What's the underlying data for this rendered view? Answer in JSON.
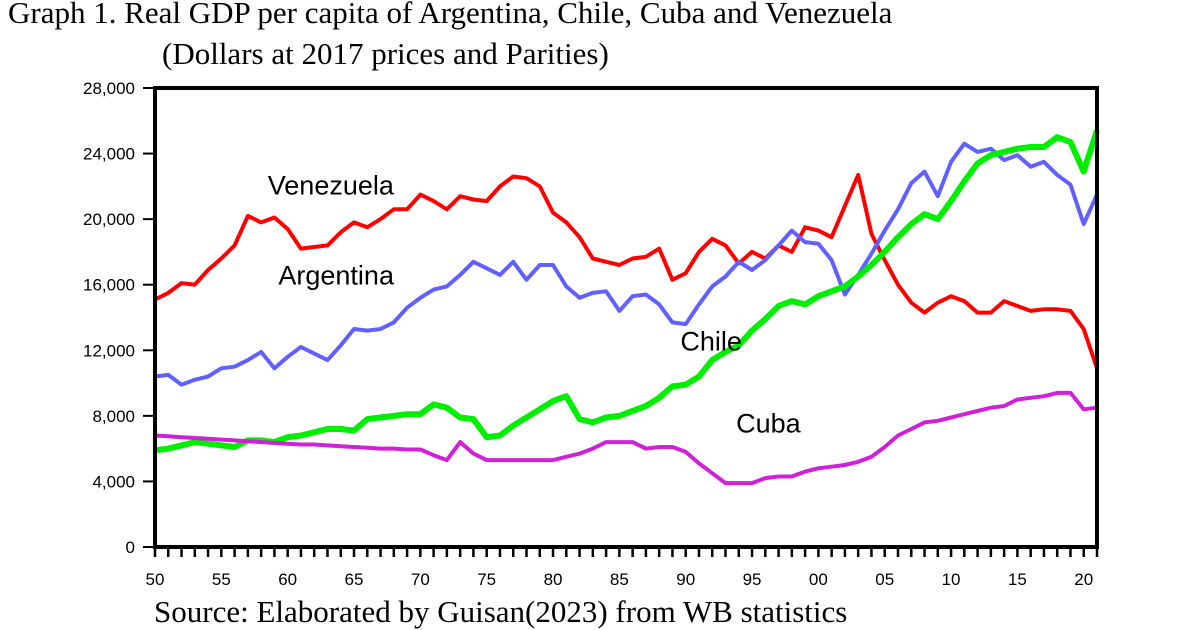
{
  "chart_data": {
    "type": "line",
    "title_line1": "Graph 1. Real GDP per capita of Argentina, Chile, Cuba and Venezuela",
    "title_line2": "(Dollars at 2017 prices and Parities)",
    "source": "Source: Elaborated by Guisan(2023) from WB statistics",
    "xlabel": "",
    "ylabel": "",
    "xlim": [
      1950,
      2021
    ],
    "ylim": [
      0,
      28000
    ],
    "yticks": [
      0,
      4000,
      8000,
      12000,
      16000,
      20000,
      24000,
      28000
    ],
    "ytick_labels": [
      "0",
      "4,000",
      "8,000",
      "12,000",
      "16,000",
      "20,000",
      "24,000",
      "28,000"
    ],
    "xticks": [
      1950,
      1955,
      1960,
      1965,
      1970,
      1975,
      1980,
      1985,
      1990,
      1995,
      2000,
      2005,
      2010,
      2015,
      2020
    ],
    "xtick_labels": [
      "50",
      "55",
      "60",
      "65",
      "70",
      "75",
      "80",
      "85",
      "90",
      "95",
      "00",
      "05",
      "10",
      "15",
      "20"
    ],
    "grid": false,
    "start_year": 1950,
    "series": [
      {
        "name": "Venezuela",
        "color": "#ff0000",
        "label_at": [
          1958.5,
          21500
        ],
        "values": [
          15100,
          15500,
          16100,
          16000,
          16900,
          17600,
          18400,
          20200,
          19800,
          20100,
          19400,
          18200,
          18300,
          18400,
          19200,
          19800,
          19500,
          20000,
          20600,
          20600,
          21500,
          21100,
          20600,
          21400,
          21200,
          21100,
          22000,
          22600,
          22500,
          22000,
          20400,
          19800,
          18900,
          17600,
          17400,
          17200,
          17600,
          17700,
          18200,
          16300,
          16700,
          18000,
          18800,
          18400,
          17300,
          18000,
          17600,
          18400,
          18000,
          19500,
          19300,
          18900,
          20800,
          22700,
          19100,
          17500,
          16000,
          14900,
          14300,
          14900,
          15300,
          15000,
          14300,
          14300,
          15000,
          14700,
          14400,
          14500,
          14500,
          14400,
          13300,
          10900
        ]
      },
      {
        "name": "Argentina",
        "color": "#6060ff",
        "label_at": [
          1959.3,
          16000
        ],
        "values": [
          10400,
          10500,
          9900,
          10200,
          10400,
          10900,
          11000,
          11400,
          11900,
          10900,
          11600,
          12200,
          11800,
          11400,
          12300,
          13300,
          13200,
          13300,
          13700,
          14600,
          15200,
          15700,
          15900,
          16600,
          17400,
          17000,
          16600,
          17400,
          16300,
          17200,
          17200,
          15900,
          15200,
          15500,
          15600,
          14400,
          15300,
          15400,
          14800,
          13700,
          13600,
          14800,
          15900,
          16500,
          17400,
          16900,
          17500,
          18400,
          19300,
          18600,
          18500,
          17500,
          15400,
          16600,
          17900,
          19300,
          20600,
          22200,
          22900,
          21400,
          23500,
          24600,
          24100,
          24300,
          23600,
          23900,
          23200,
          23500,
          22700,
          22100,
          19700,
          21500
        ]
      },
      {
        "name": "Chile",
        "color": "#00ee00",
        "label_at": [
          1989.6,
          12000
        ],
        "values": [
          5900,
          6000,
          6200,
          6400,
          6300,
          6200,
          6100,
          6500,
          6500,
          6400,
          6700,
          6800,
          7000,
          7200,
          7200,
          7100,
          7800,
          7900,
          8000,
          8100,
          8100,
          8700,
          8500,
          7900,
          7800,
          6700,
          6800,
          7400,
          7900,
          8400,
          8900,
          9200,
          7800,
          7600,
          7900,
          8000,
          8300,
          8600,
          9100,
          9800,
          9900,
          10400,
          11400,
          11900,
          12300,
          13200,
          13900,
          14700,
          15000,
          14800,
          15300,
          15600,
          15900,
          16500,
          17200,
          18000,
          18900,
          19700,
          20300,
          20000,
          21100,
          22300,
          23400,
          23900,
          24100,
          24300,
          24400,
          24400,
          25000,
          24700,
          22900,
          25400
        ]
      },
      {
        "name": "Cuba",
        "color": "#d020d8",
        "label_at": [
          1993.8,
          7000
        ],
        "values": [
          6800,
          6750,
          6700,
          6650,
          6600,
          6550,
          6500,
          6450,
          6400,
          6350,
          6300,
          6250,
          6250,
          6200,
          6150,
          6100,
          6050,
          6000,
          6000,
          5950,
          5950,
          5600,
          5300,
          6400,
          5700,
          5300,
          5300,
          5300,
          5300,
          5300,
          5300,
          5500,
          5700,
          6000,
          6400,
          6400,
          6400,
          6000,
          6100,
          6100,
          5800,
          5100,
          4500,
          3900,
          3900,
          3900,
          4200,
          4300,
          4300,
          4600,
          4800,
          4900,
          5000,
          5200,
          5500,
          6100,
          6800,
          7200,
          7600,
          7700,
          7900,
          8100,
          8300,
          8500,
          8600,
          9000,
          9100,
          9200,
          9400,
          9400,
          8400,
          8500
        ]
      }
    ]
  }
}
